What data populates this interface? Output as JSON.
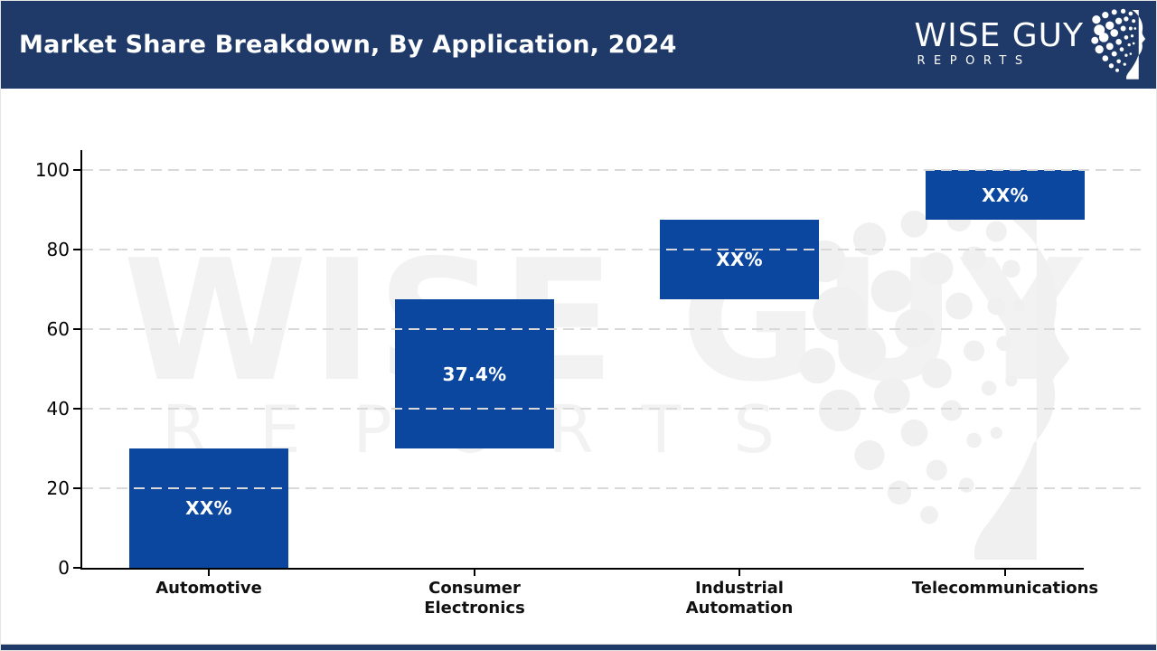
{
  "header": {
    "title": "Market Share Breakdown, By Application, 2024",
    "logo_wordmark": "WISE GUY",
    "logo_subtext": "REPORTS"
  },
  "watermark": {
    "wordmark": "WISE GUY",
    "subtext": "REPORTS"
  },
  "chart_data": {
    "type": "bar",
    "subtype": "waterfall",
    "title": "Market Share Breakdown, By Application, 2024",
    "categories": [
      "Automotive",
      "Consumer Electronics",
      "Industrial Automation",
      "Telecommunications"
    ],
    "xtick_labels": [
      "Automotive",
      "Consumer\nElectronics",
      "Industrial\nAutomation",
      "Telecommunications"
    ],
    "segments": [
      {
        "category": "Automotive",
        "start": 0,
        "end": 30,
        "value": 30,
        "label": "XX%"
      },
      {
        "category": "Consumer Electronics",
        "start": 30,
        "end": 67.4,
        "value": 37.4,
        "label": "37.4%"
      },
      {
        "category": "Industrial Automation",
        "start": 67.4,
        "end": 87.4,
        "value": 20,
        "label": "XX%"
      },
      {
        "category": "Telecommunications",
        "start": 87.4,
        "end": 100,
        "value": 12.6,
        "label": "XX%"
      }
    ],
    "ylim": [
      0,
      100
    ],
    "yticks": [
      0,
      20,
      40,
      60,
      80,
      100
    ],
    "grid": "horizontal-dashed",
    "legend": "none",
    "bar_color": "#0b479e",
    "bar_label_color": "#ffffff"
  },
  "colors": {
    "header_bg": "#1f3a68",
    "bar": "#0b479e",
    "grid": "#d9d9d9",
    "axis": "#000000",
    "watermark": "#f2f2f2",
    "background": "#ffffff"
  }
}
